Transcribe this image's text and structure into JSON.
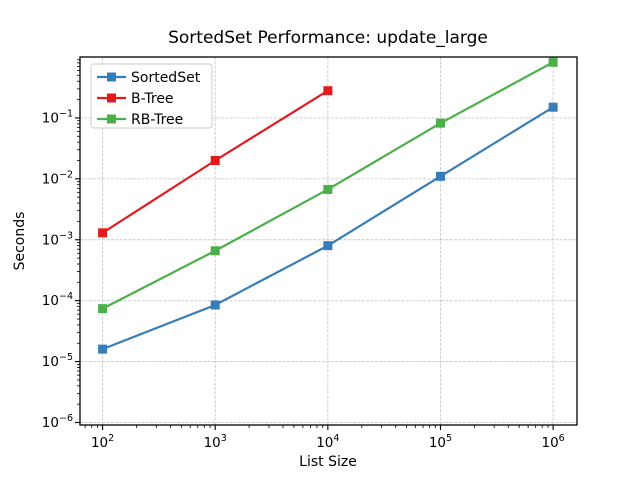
{
  "chart_data": {
    "type": "line",
    "title": "SortedSet Performance: update_large",
    "xlabel": "List Size",
    "ylabel": "Seconds",
    "x_scale": "log",
    "y_scale": "log",
    "xlim": [
      63,
      1630000
    ],
    "ylim": [
      9.1e-07,
      1.0
    ],
    "x_ticks_exponents": [
      2,
      3,
      4,
      5,
      6
    ],
    "y_ticks_exponents": [
      -6,
      -5,
      -4,
      -3,
      -2,
      -1
    ],
    "grid": "major-dashed",
    "series": [
      {
        "name": "SortedSet",
        "color": "#377eb8",
        "marker": "square",
        "x": [
          100,
          1000,
          10000,
          100000,
          1000000
        ],
        "values": [
          1.6e-05,
          8.5e-05,
          0.0008,
          0.011,
          0.15
        ]
      },
      {
        "name": "B-Tree",
        "color": "#e41a1c",
        "marker": "square",
        "x": [
          100,
          1000,
          10000
        ],
        "values": [
          0.0013,
          0.02,
          0.28
        ]
      },
      {
        "name": "RB-Tree",
        "color": "#4daf4a",
        "marker": "square",
        "x": [
          100,
          1000,
          10000,
          100000,
          1000000
        ],
        "values": [
          7.4e-05,
          0.00066,
          0.0067,
          0.082,
          0.82
        ]
      }
    ],
    "legend": {
      "position": "upper-left",
      "entries": [
        "SortedSet",
        "B-Tree",
        "RB-Tree"
      ]
    },
    "colors": {
      "background": "#ffffff",
      "spine": "#000000",
      "grid": "#c9c9c9",
      "tick": "#000000",
      "legend_border": "#cccccc",
      "legend_background": "#ffffff"
    }
  }
}
